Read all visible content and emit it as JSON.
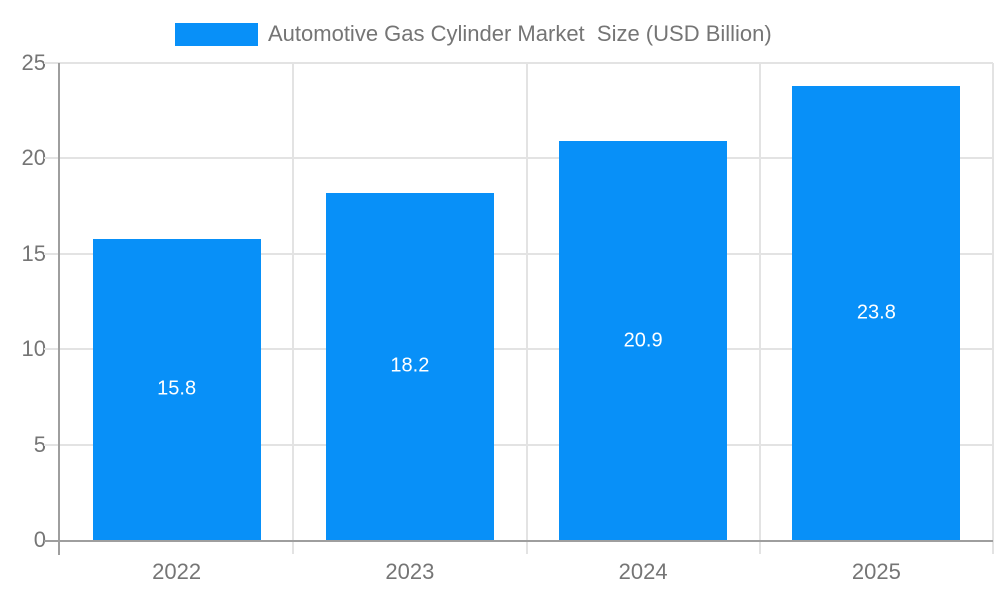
{
  "chart_data": {
    "type": "bar",
    "title": "Automotive Gas Cylinder Market  Size (USD Billion)",
    "categories": [
      "2022",
      "2023",
      "2024",
      "2025"
    ],
    "values": [
      15.8,
      18.2,
      20.9,
      23.8
    ],
    "value_labels": [
      "15.8",
      "18.2",
      "20.9",
      "23.8"
    ],
    "ylim": [
      0,
      25
    ],
    "yticks": [
      0,
      5,
      10,
      15,
      20,
      25
    ],
    "grid": true,
    "legend_position": "top",
    "xlabel": "",
    "ylabel": "",
    "colors": {
      "bar": "#0890f8",
      "axis": "#9e9e9e",
      "grid": "#e3e3e3",
      "tick_label": "#757575",
      "title": "#757575",
      "value_label": "#ffffff",
      "background": "#ffffff"
    }
  }
}
